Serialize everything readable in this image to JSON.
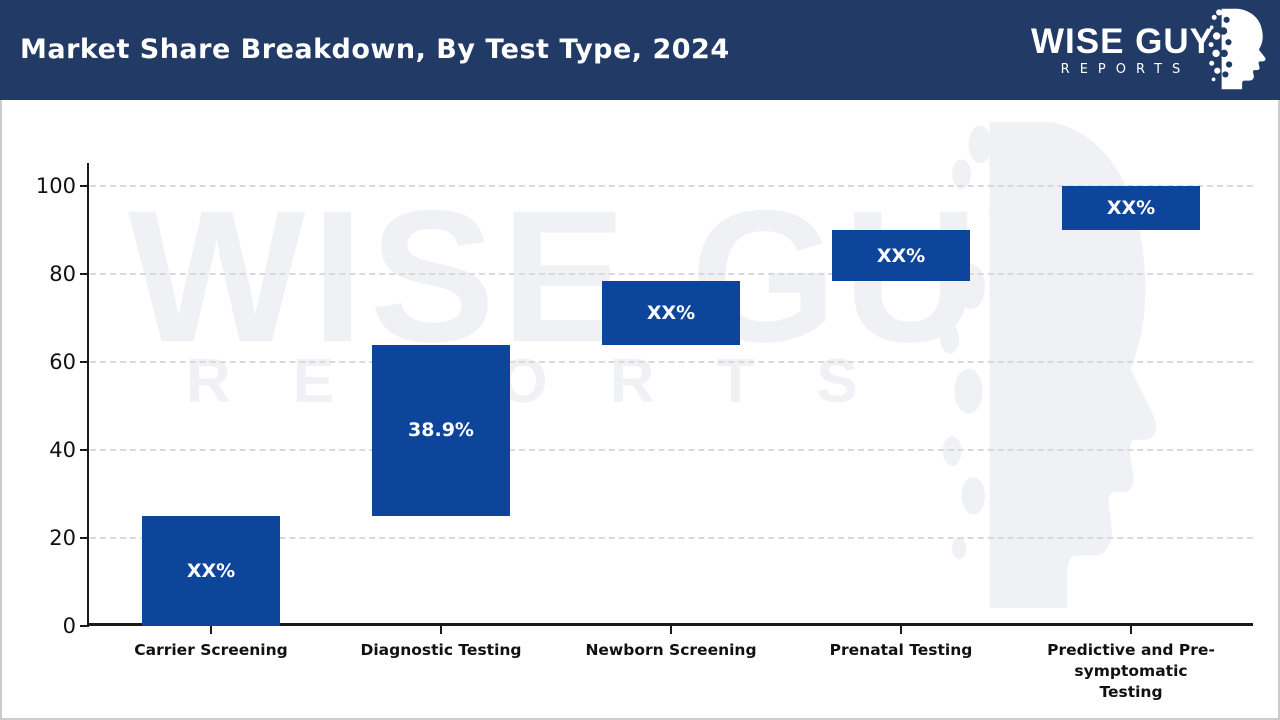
{
  "header": {
    "title": "Market Share Breakdown, By Test Type, 2024",
    "logo": {
      "name": "WISE GUY",
      "tagline": "REPORTS"
    }
  },
  "watermark": {
    "big_text": "WISE GUY",
    "sub_text": "REPORTS"
  },
  "colors": {
    "header_bg": "#213a66",
    "bar_blue": "#0c4599",
    "grid_gray": "#dadada",
    "axis_black": "#1a1a1a",
    "watermark_gray": "#f0f1f4",
    "frame_border": "#caccd0"
  },
  "chart_data": {
    "type": "bar",
    "variant": "waterfall",
    "title": "Market Share Breakdown, By Test Type, 2024",
    "xlabel": "",
    "ylabel": "",
    "ylim": [
      0,
      105
    ],
    "y_ticks": [
      0,
      20,
      40,
      60,
      80,
      100
    ],
    "grid": "horizontal-dashed",
    "legend": "none",
    "categories": [
      "Carrier Screening",
      "Diagnostic Testing",
      "Newborn Screening",
      "Prenatal Testing",
      "Predictive and Pre-symptomatic Testing"
    ],
    "segments": [
      {
        "category": "Carrier Screening",
        "start": 0,
        "end": 25,
        "height_pct": 25,
        "label": "XX%"
      },
      {
        "category": "Diagnostic Testing",
        "start": 25,
        "end": 63.9,
        "height_pct": 38.9,
        "label": "38.9%"
      },
      {
        "category": "Newborn Screening",
        "start": 63.9,
        "end": 78.4,
        "height_pct": 14.5,
        "label": "XX%"
      },
      {
        "category": "Prenatal Testing",
        "start": 78.4,
        "end": 90,
        "height_pct": 11.6,
        "label": "XX%"
      },
      {
        "category": "Predictive and Pre-symptomatic Testing",
        "start": 90,
        "end": 100,
        "height_pct": 10,
        "label": "XX%"
      }
    ]
  }
}
